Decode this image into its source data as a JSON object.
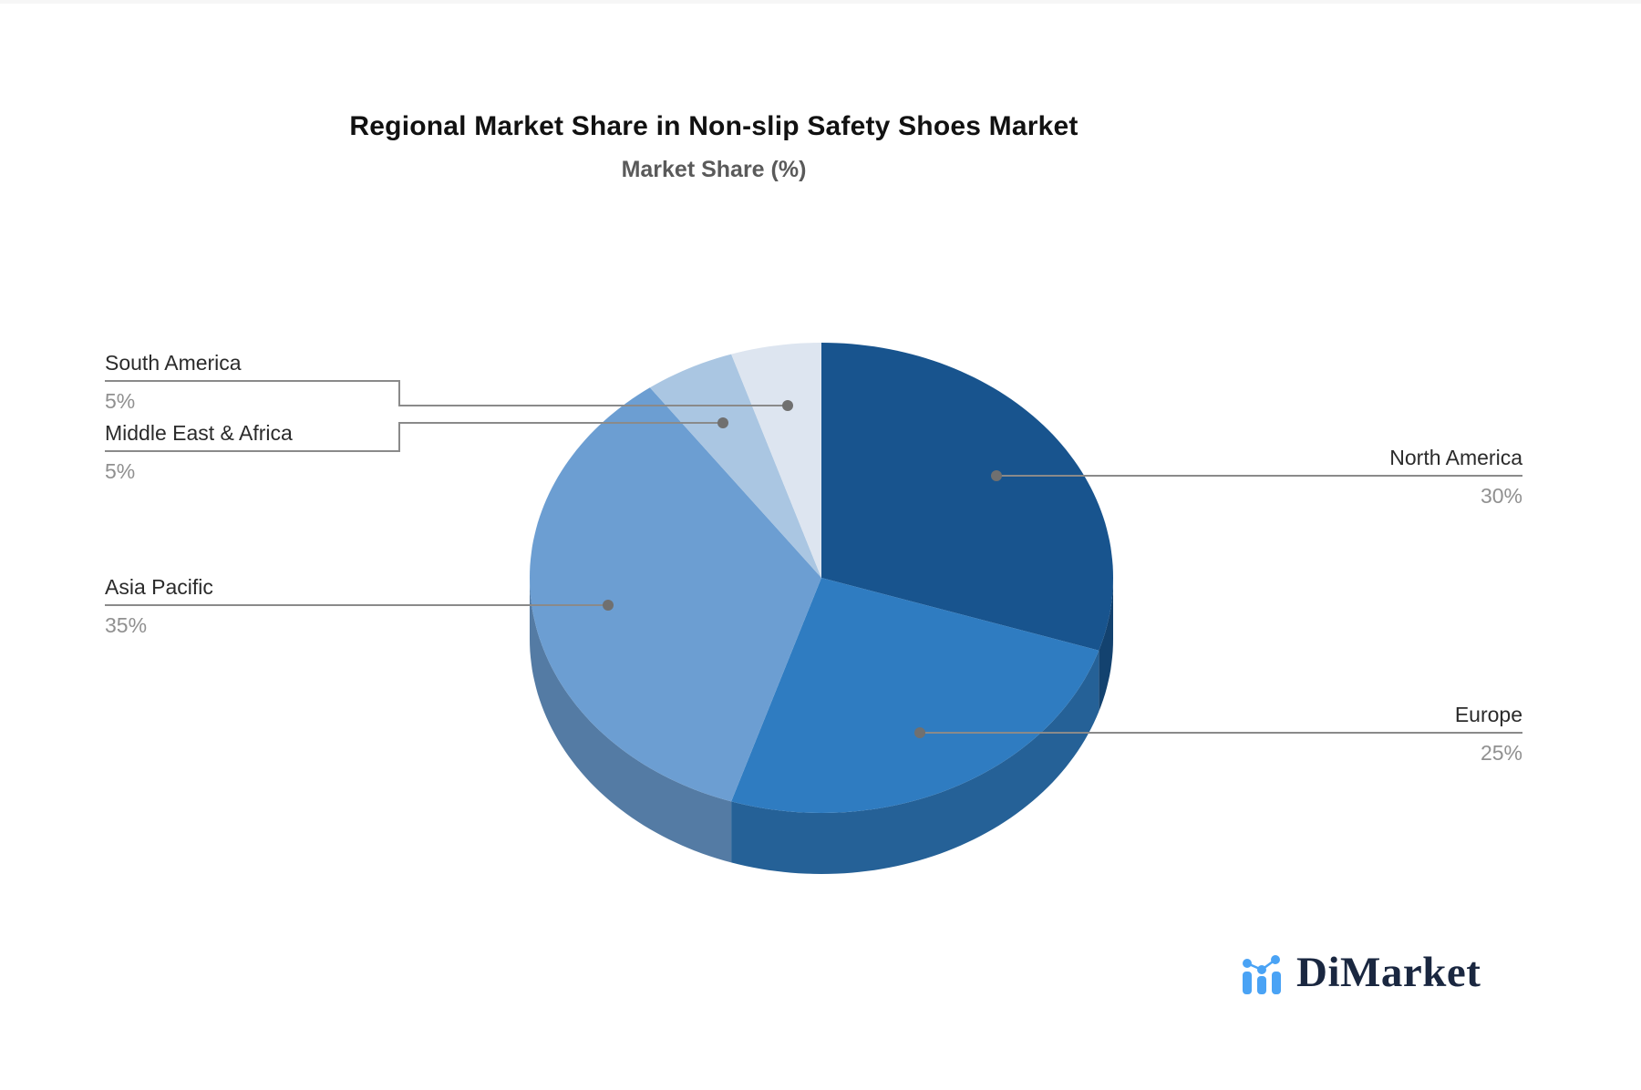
{
  "page": {
    "title": "Regional Market Share in Non-slip Safety Shoes Market",
    "subtitle": "Market Share (%)"
  },
  "chart_data": {
    "type": "pie",
    "style": "3d-pie",
    "title": "Regional Market Share in Non-slip Safety Shoes Market",
    "subtitle": "Market Share (%)",
    "unit": "%",
    "direction": "clockwise",
    "start_angle": "12-oclock",
    "labels": [
      "North America",
      "Europe",
      "Asia Pacific",
      "Middle East & Africa",
      "South America"
    ],
    "values": [
      30,
      25,
      35,
      5,
      5
    ],
    "display_values": [
      "30%",
      "25%",
      "35%",
      "5%",
      "5%"
    ],
    "colors": [
      "#18548E",
      "#2F7CC1",
      "#6C9ED2",
      "#AAC6E2",
      "#DDE5F0"
    ],
    "legend_position": "callout-labels",
    "total": 100
  },
  "style_colors": {
    "connector_line": "#8A8A8A",
    "connector_dot": "#707070",
    "label_text": "#2B2B2B",
    "value_text": "#909090",
    "title_text": "#111111",
    "subtitle_text": "#5A5A5A",
    "background": "#FFFFFF"
  },
  "logo": {
    "text": "DiMarket",
    "icon": "bar-chart-icon",
    "icon_color": "#4AA3F5",
    "text_color": "#1A2740"
  }
}
